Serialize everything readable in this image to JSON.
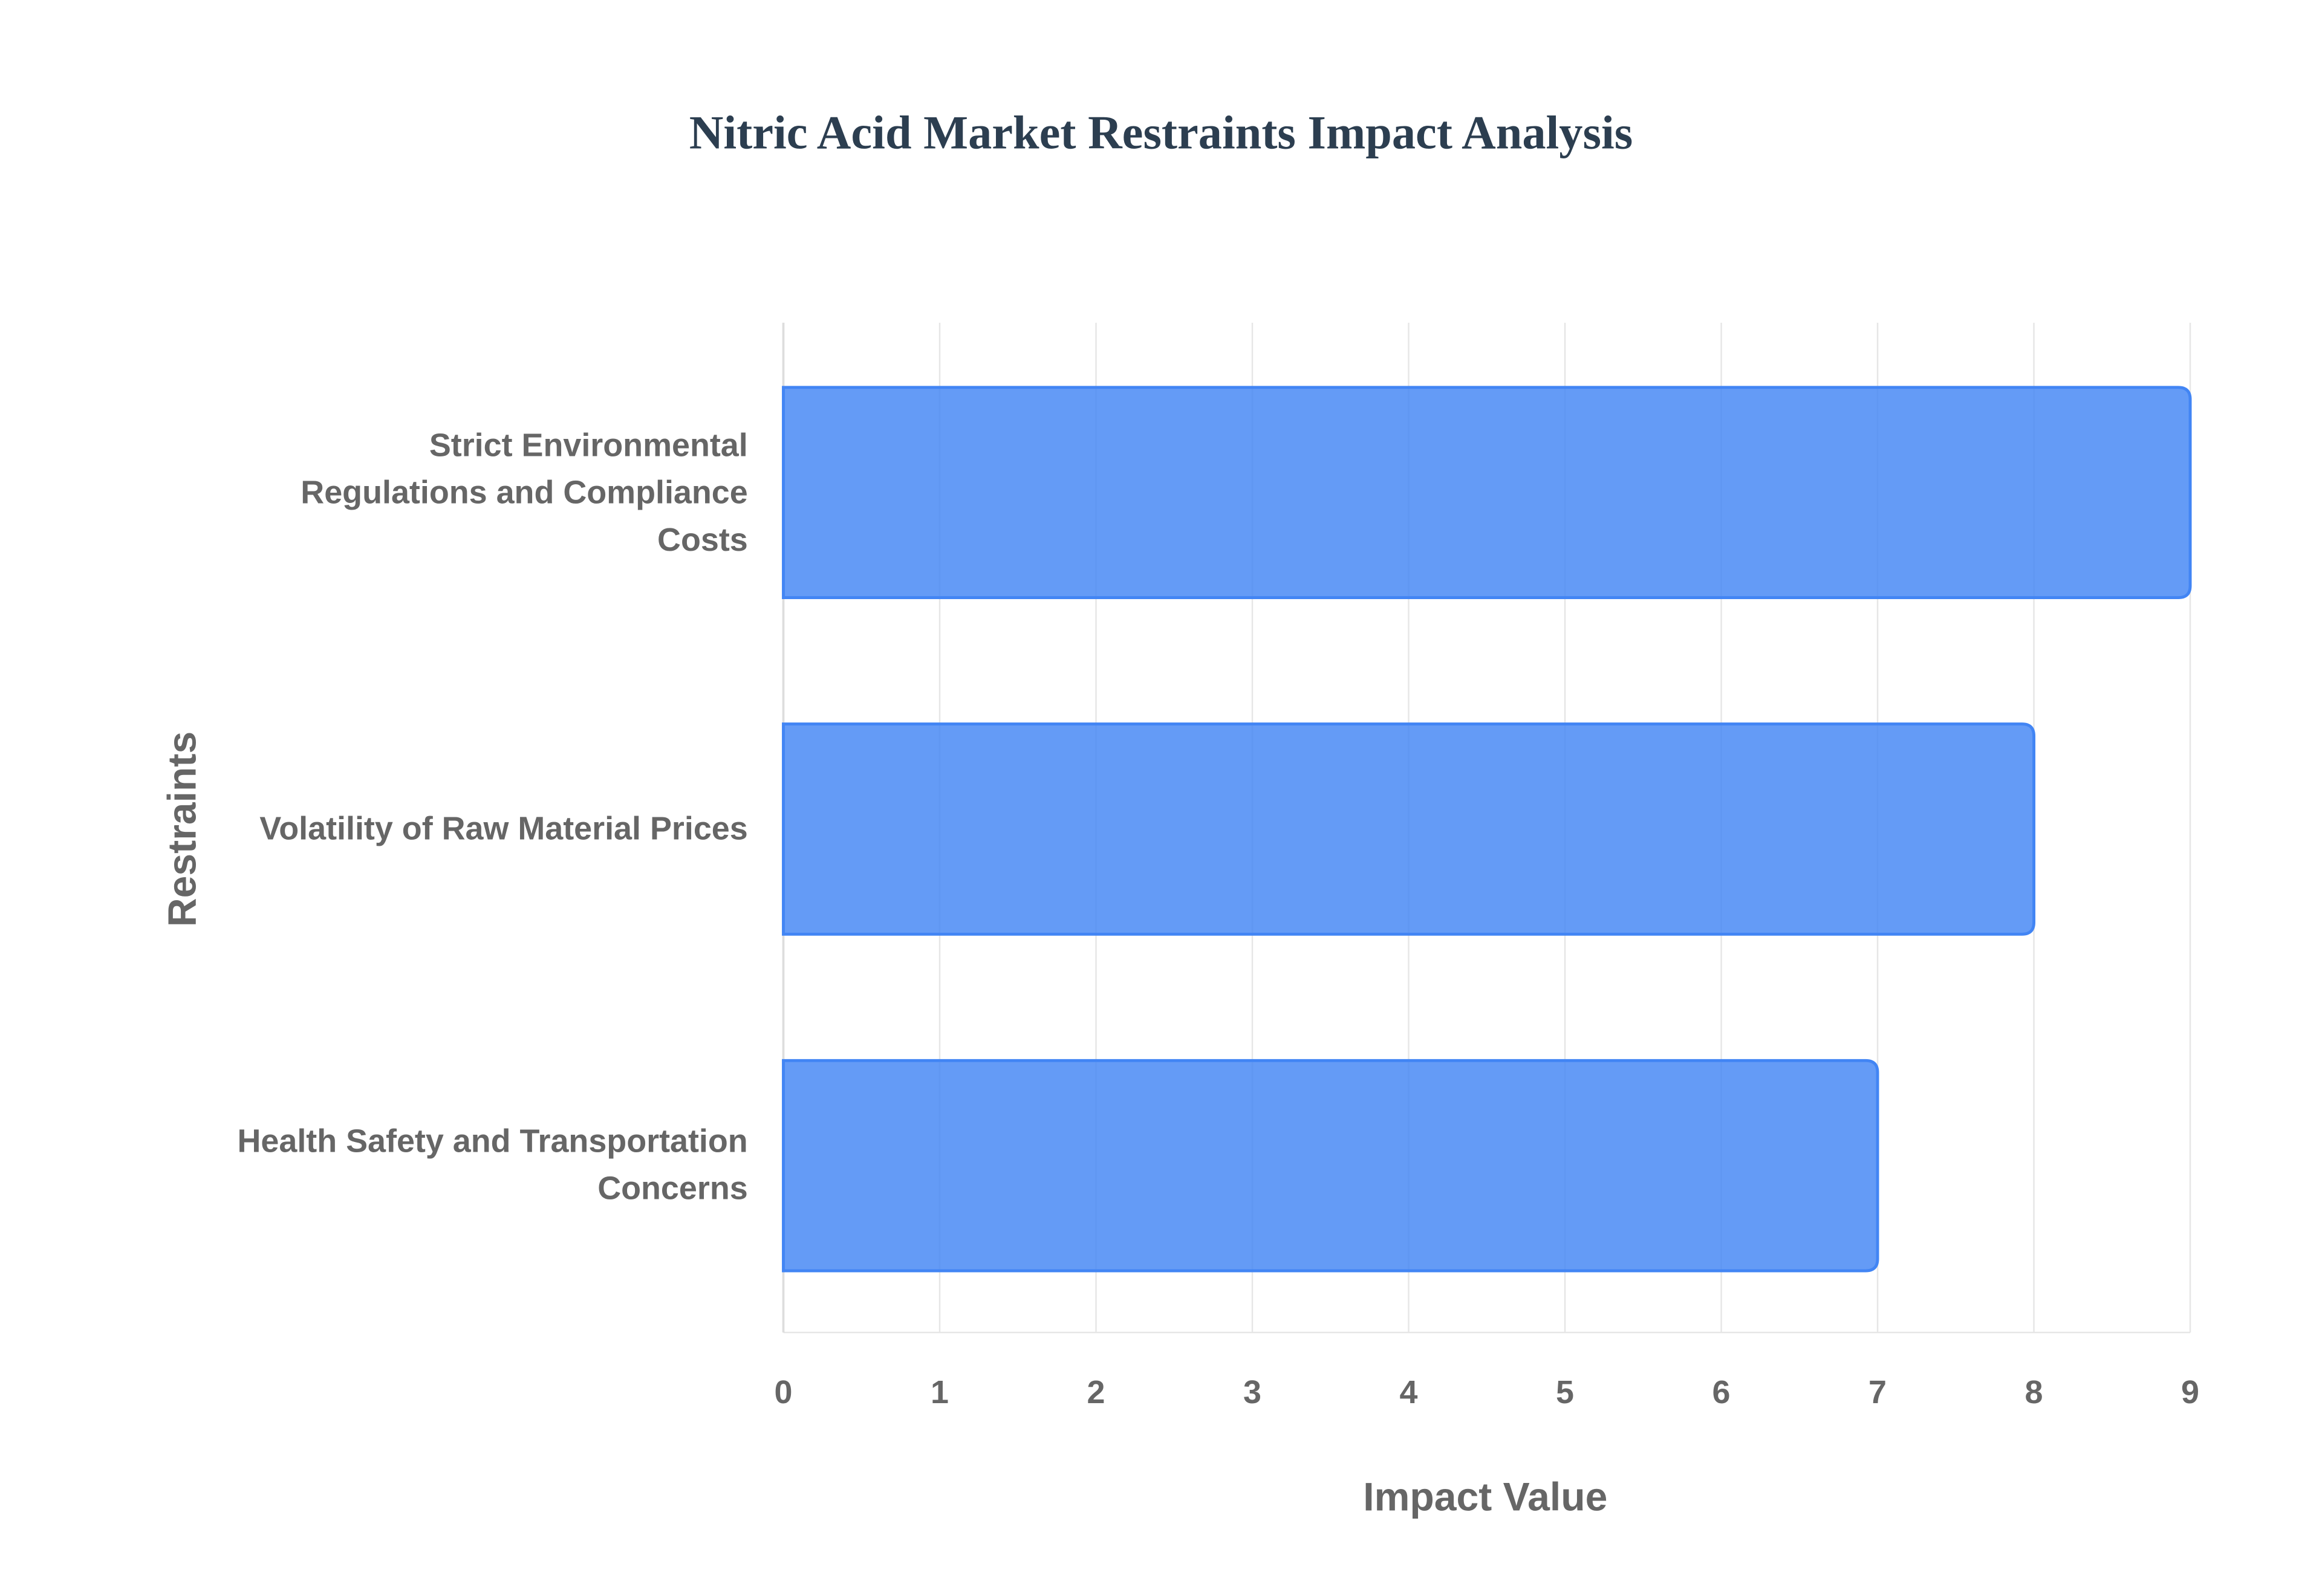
{
  "chart_data": {
    "type": "bar",
    "orientation": "horizontal",
    "title": "Nitric Acid Market Restraints Impact Analysis",
    "x_label": "Impact Value",
    "y_label": "Restraints",
    "categories": [
      "Strict Environmental Regulations and Compliance Costs",
      "Volatility of Raw Material Prices",
      "Health Safety and Transportation Concerns"
    ],
    "values": [
      9,
      8,
      7
    ],
    "color": "#4285f4",
    "xlim": [
      0,
      9
    ],
    "xticks": [
      0,
      1,
      2,
      3,
      4,
      5,
      6,
      7,
      8,
      9
    ],
    "grid": true
  }
}
